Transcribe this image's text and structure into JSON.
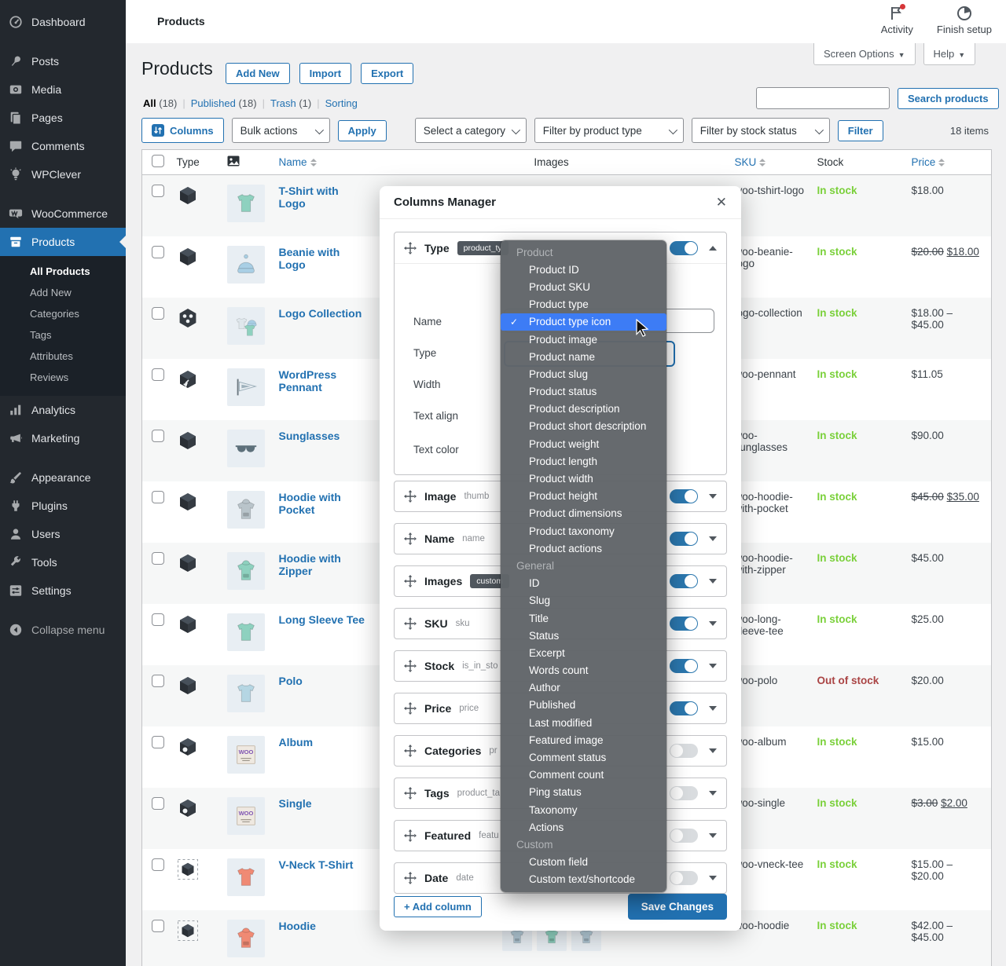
{
  "topbar": {
    "title": "Products",
    "activity": "Activity",
    "finish_setup": "Finish setup"
  },
  "screen_options_label": "Screen Options",
  "help_label": "Help",
  "page": {
    "title": "Products",
    "actions": [
      "Add New",
      "Import",
      "Export"
    ]
  },
  "views": [
    {
      "label": "All",
      "count": "(18)",
      "active": true
    },
    {
      "label": "Published",
      "count": "(18)"
    },
    {
      "label": "Trash",
      "count": "(1)"
    },
    {
      "label": "Sorting"
    }
  ],
  "search": {
    "value": "",
    "button": "Search products"
  },
  "toolbar": {
    "columns": "Columns",
    "bulk_actions": "Bulk actions",
    "apply": "Apply",
    "category": "Select a category",
    "product_type": "Filter by product type",
    "stock_status": "Filter by stock status",
    "filter": "Filter",
    "items_count": "18 items"
  },
  "table": {
    "headers": {
      "type": "Type",
      "name": "Name",
      "images": "Images",
      "sku": "SKU",
      "stock": "Stock",
      "price": "Price"
    },
    "rows": [
      {
        "name": "T-Shirt with Logo",
        "type_icon": "simple-product-icon",
        "thumb": "tshirt",
        "thumb_color": "#8ed1bf",
        "sku": "woo-tshirt-logo",
        "stock": "In stock",
        "stock_state": "in",
        "price": "$18.00"
      },
      {
        "name": "Beanie with Logo",
        "type_icon": "simple-product-icon",
        "thumb": "beanie",
        "thumb_color": "#a9cfe5",
        "sku": "woo-beanie-logo",
        "stock": "In stock",
        "stock_state": "in",
        "price_del": "$20.00",
        "price_ins": "$18.00"
      },
      {
        "name": "Logo Collection",
        "type_icon": "grouped-product-icon",
        "thumb": "collection",
        "thumb_color": "#8ed1bf",
        "sku": "logo-collection",
        "stock": "In stock",
        "stock_state": "in",
        "price": "$18.00 – $45.00"
      },
      {
        "name": "WordPress Pennant",
        "type_icon": "external-product-icon",
        "thumb": "pennant",
        "thumb_color": "#9db0bb",
        "sku": "woo-pennant",
        "stock": "In stock",
        "stock_state": "in",
        "price": "$11.05"
      },
      {
        "name": "Sunglasses",
        "type_icon": "simple-product-icon",
        "thumb": "sunglasses",
        "thumb_color": "#5d707b",
        "sku": "woo-sunglasses",
        "stock": "In stock",
        "stock_state": "in",
        "price": "$90.00"
      },
      {
        "name": "Hoodie with Pocket",
        "type_icon": "simple-product-icon",
        "thumb": "hoodie",
        "thumb_color": "#b9c4ca",
        "sku": "woo-hoodie-with-pocket",
        "stock": "In stock",
        "stock_state": "in",
        "price_del": "$45.00",
        "price_ins": "$35.00"
      },
      {
        "name": "Hoodie with Zipper",
        "type_icon": "simple-product-icon",
        "thumb": "hoodie",
        "thumb_color": "#8ed1bf",
        "sku": "woo-hoodie-with-zipper",
        "stock": "In stock",
        "stock_state": "in",
        "price": "$45.00"
      },
      {
        "name": "Long Sleeve Tee",
        "type_icon": "simple-product-icon",
        "thumb": "tshirt",
        "thumb_color": "#8ed1bf",
        "sku": "woo-long-sleeve-tee",
        "stock": "In stock",
        "stock_state": "in",
        "price": "$25.00"
      },
      {
        "name": "Polo",
        "type_icon": "simple-product-icon",
        "thumb": "tshirt",
        "thumb_color": "#b5d6e3",
        "sku": "woo-polo",
        "stock": "Out of stock",
        "stock_state": "out",
        "price": "$20.00"
      },
      {
        "name": "Album",
        "type_icon": "downloadable-product-icon",
        "thumb": "album",
        "thumb_color": "#efe9e1",
        "sku": "woo-album",
        "stock": "In stock",
        "stock_state": "in",
        "price": "$15.00"
      },
      {
        "name": "Single",
        "type_icon": "downloadable-product-icon",
        "thumb": "album",
        "thumb_color": "#efe9e1",
        "sku": "woo-single",
        "stock": "In stock",
        "stock_state": "in",
        "price_del": "$3.00",
        "price_ins": "$2.00"
      },
      {
        "name": "V-Neck T-Shirt",
        "type_icon": "variable-product-icon",
        "thumb": "tshirt",
        "thumb_color": "#f08a74",
        "sku": "woo-vneck-tee",
        "stock": "In stock",
        "stock_state": "in",
        "price": "$15.00 – $20.00"
      },
      {
        "name": "Hoodie",
        "type_icon": "variable-product-icon",
        "thumb": "hoodie",
        "thumb_color": "#f08a74",
        "sku": "woo-hoodie",
        "stock": "In stock",
        "stock_state": "in",
        "price": "$42.00 – $45.00",
        "images": [
          {
            "thumb": "hoodie",
            "color": "#b4cbd8"
          },
          {
            "thumb": "hoodie",
            "color": "#8ed1bf"
          },
          {
            "thumb": "hoodie",
            "color": "#b4cbd8"
          }
        ]
      }
    ]
  },
  "sidebar": {
    "items": [
      {
        "label": "Dashboard",
        "icon": "dashboard-icon"
      },
      {
        "label": "Posts",
        "icon": "posts-icon",
        "gap_before": true
      },
      {
        "label": "Media",
        "icon": "media-icon"
      },
      {
        "label": "Pages",
        "icon": "pages-icon"
      },
      {
        "label": "Comments",
        "icon": "comments-icon"
      },
      {
        "label": "WPClever",
        "icon": "wpclever-icon"
      },
      {
        "label": "WooCommerce",
        "icon": "woocommerce-icon",
        "gap_before": true
      },
      {
        "label": "Products",
        "icon": "products-icon",
        "active": true,
        "submenu": [
          {
            "label": "All Products",
            "current": true
          },
          {
            "label": "Add New"
          },
          {
            "label": "Categories"
          },
          {
            "label": "Tags"
          },
          {
            "label": "Attributes"
          },
          {
            "label": "Reviews"
          }
        ]
      },
      {
        "label": "Analytics",
        "icon": "analytics-icon"
      },
      {
        "label": "Marketing",
        "icon": "marketing-icon"
      },
      {
        "label": "Appearance",
        "icon": "appearance-icon",
        "gap_before": true
      },
      {
        "label": "Plugins",
        "icon": "plugins-icon"
      },
      {
        "label": "Users",
        "icon": "users-icon"
      },
      {
        "label": "Tools",
        "icon": "tools-icon"
      },
      {
        "label": "Settings",
        "icon": "settings-icon"
      },
      {
        "label": "Collapse menu",
        "icon": "collapse-icon",
        "dim": true,
        "gap_before": true
      }
    ]
  },
  "modal": {
    "title": "Columns Manager",
    "expanded": {
      "label": "Type",
      "badge": "product_ty",
      "enabled": true,
      "fields": [
        "Name",
        "Type",
        "Width",
        "Text align",
        "Text color"
      ],
      "name_value": ""
    },
    "cards": [
      {
        "label": "Image",
        "key": "thumb",
        "on": true
      },
      {
        "label": "Name",
        "key": "name",
        "on": true
      },
      {
        "label": "Images",
        "badge": "custom",
        "on": true
      },
      {
        "label": "SKU",
        "key": "sku",
        "on": true
      },
      {
        "label": "Stock",
        "key": "is_in_sto",
        "on": true
      },
      {
        "label": "Price",
        "key": "price",
        "on": true
      },
      {
        "label": "Categories",
        "key": "pr",
        "on": false
      },
      {
        "label": "Tags",
        "key": "product_ta",
        "on": false
      },
      {
        "label": "Featured",
        "key": "featu",
        "on": false
      },
      {
        "label": "Date",
        "key": "date",
        "on": false
      }
    ],
    "add_column": "+ Add column",
    "save": "Save Changes"
  },
  "dropdown": {
    "selected": "Product type icon",
    "groups": [
      {
        "label": "Product",
        "items": [
          "Product ID",
          "Product SKU",
          "Product type",
          "Product type icon",
          "Product image",
          "Product name",
          "Product slug",
          "Product status",
          "Product description",
          "Product short description",
          "Product weight",
          "Product length",
          "Product width",
          "Product height",
          "Product dimensions",
          "Product taxonomy",
          "Product actions"
        ]
      },
      {
        "label": "General",
        "items": [
          "ID",
          "Slug",
          "Title",
          "Status",
          "Excerpt",
          "Words count",
          "Author",
          "Published",
          "Last modified",
          "Featured image",
          "Comment status",
          "Comment count",
          "Ping status",
          "Taxonomy",
          "Actions"
        ]
      },
      {
        "label": "Custom",
        "items": [
          "Custom field",
          "Custom text/shortcode"
        ]
      }
    ]
  },
  "colors": {
    "accent_blue": "#2271b1",
    "in_stock_green": "#7ad03a",
    "out_of_stock_red": "#a44",
    "menu_dark": "#23282e",
    "selected_menu_blue": "#3d7cf5"
  }
}
